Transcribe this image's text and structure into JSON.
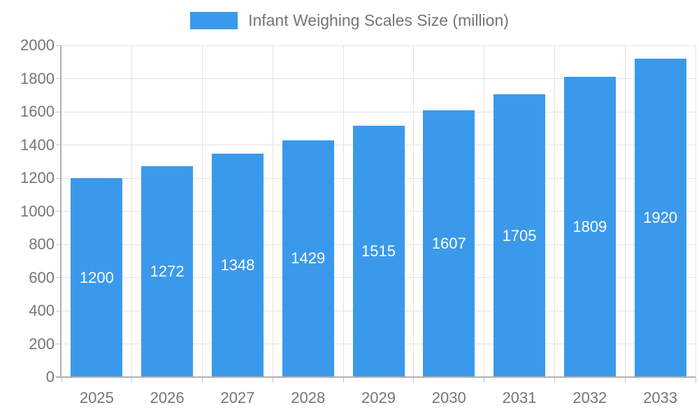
{
  "legend": {
    "label": "Infant Weighing Scales Size (million)"
  },
  "chart_data": {
    "type": "bar",
    "title": "Infant Weighing Scales Size (million)",
    "categories": [
      "2025",
      "2026",
      "2027",
      "2028",
      "2029",
      "2030",
      "2031",
      "2032",
      "2033"
    ],
    "values": [
      1200,
      1272,
      1348,
      1429,
      1515,
      1607,
      1705,
      1809,
      1920
    ],
    "xlabel": "",
    "ylabel": "",
    "ylim": [
      0,
      2000
    ],
    "yticks": [
      0,
      200,
      400,
      600,
      800,
      1000,
      1200,
      1400,
      1600,
      1800,
      2000
    ],
    "grid": true,
    "legend_position": "top-center",
    "value_label_position": "inside-center",
    "colors": {
      "bar": "#3B99EC",
      "value_label": "#FFFFFF",
      "axis_text": "#757575",
      "legend_text": "#757575",
      "gridline": "#E3E3E3",
      "axis_line": "#B0B0B0",
      "tick": "#C9C9C9",
      "background": "#FFFFFF"
    }
  }
}
